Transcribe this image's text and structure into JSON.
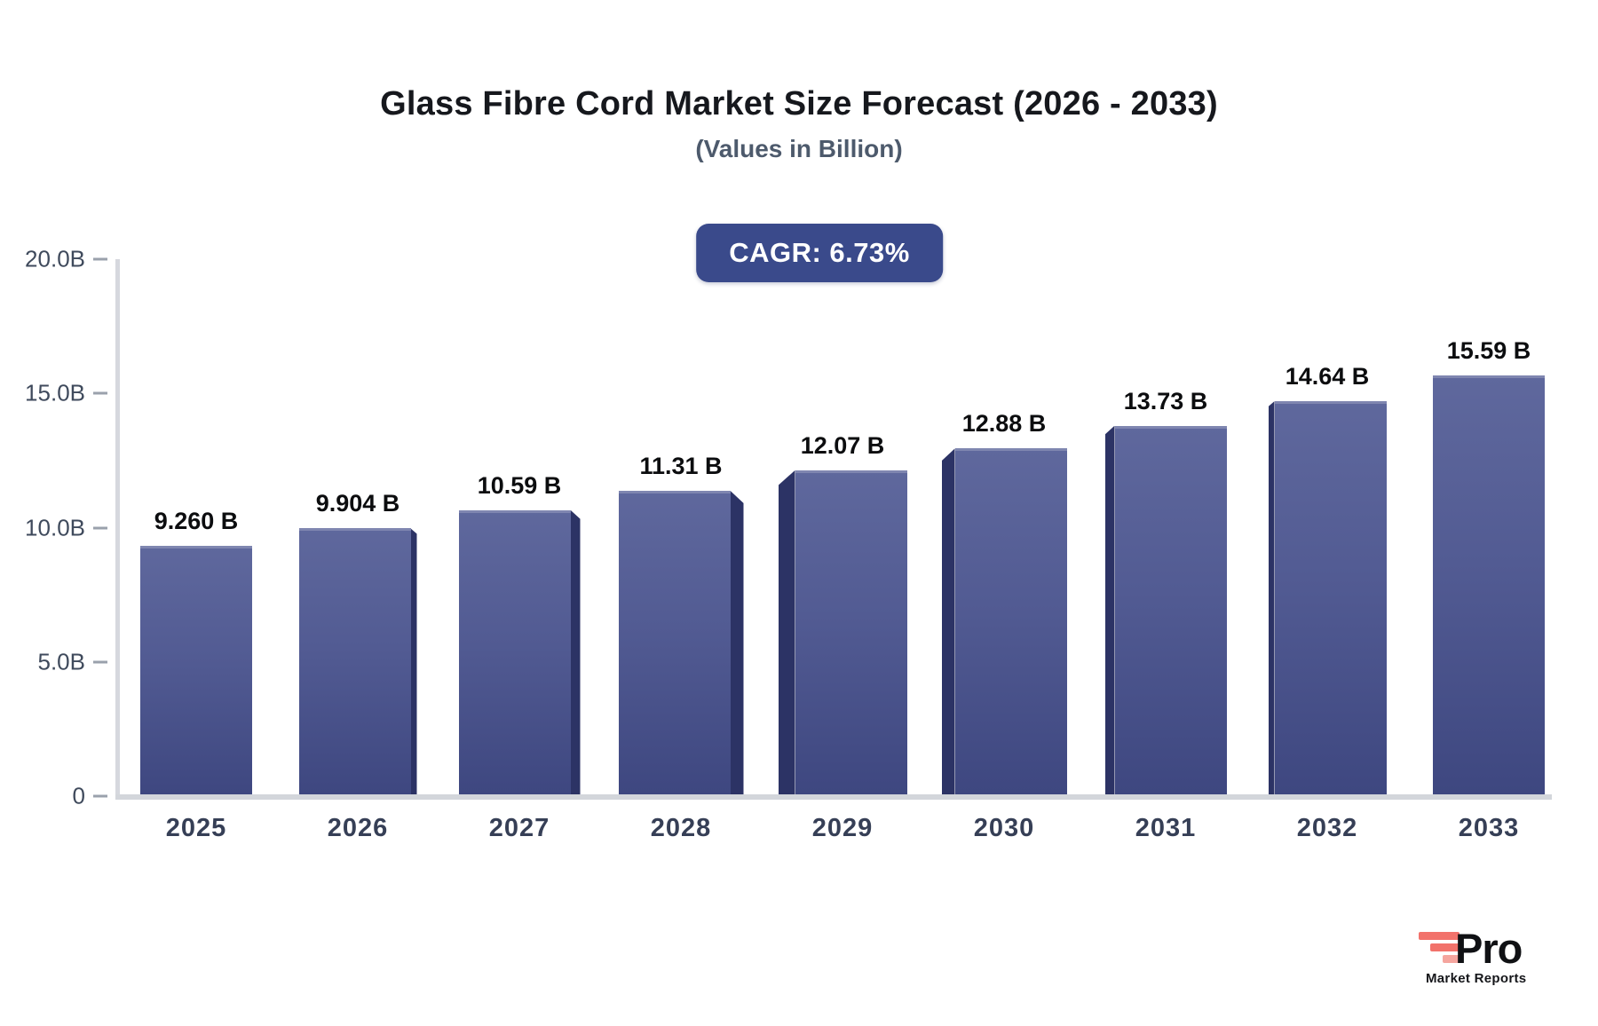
{
  "header": {
    "title": "Glass Fibre Cord Market Size Forecast (2026 - 2033)",
    "subtitle": "(Values in Billion)",
    "cagr_label": "CAGR: 6.73%"
  },
  "chart_data": {
    "type": "bar",
    "title": "Glass Fibre Cord Market Size Forecast (2026 - 2033)",
    "subtitle": "(Values in Billion)",
    "categories": [
      "2025",
      "2026",
      "2027",
      "2028",
      "2029",
      "2030",
      "2031",
      "2032",
      "2033"
    ],
    "values": [
      9.26,
      9.904,
      10.59,
      11.31,
      12.07,
      12.88,
      13.73,
      14.64,
      15.59
    ],
    "value_labels": [
      "9.260 B",
      "9.904 B",
      "10.59 B",
      "11.31 B",
      "12.07 B",
      "12.88 B",
      "13.73 B",
      "14.64 B",
      "15.59 B"
    ],
    "unit": "Billion",
    "cagr": "6.73%",
    "xlabel": "",
    "ylabel": "",
    "ylim": [
      0,
      20
    ],
    "grid": false,
    "legend": "none",
    "y_ticks": [
      {
        "label": "0",
        "value": 0
      },
      {
        "label": "5.0B",
        "value": 5
      },
      {
        "label": "10.0B",
        "value": 10
      },
      {
        "label": "15.0B",
        "value": 15
      },
      {
        "label": "20.0B",
        "value": 20
      }
    ],
    "colors": {
      "bar_front_top": "#5f689d",
      "bar_front_bottom": "#3e4780",
      "bar_side": "#2c3365",
      "axis": "#d6d8de",
      "tick_text": "#3f4a5c",
      "badge_bg": "#3a4a8b",
      "value_label_text": "#0c0d0f"
    }
  },
  "logo": {
    "name": "Pro",
    "tagline": "Market Reports",
    "accent_color": "#f2726b"
  }
}
